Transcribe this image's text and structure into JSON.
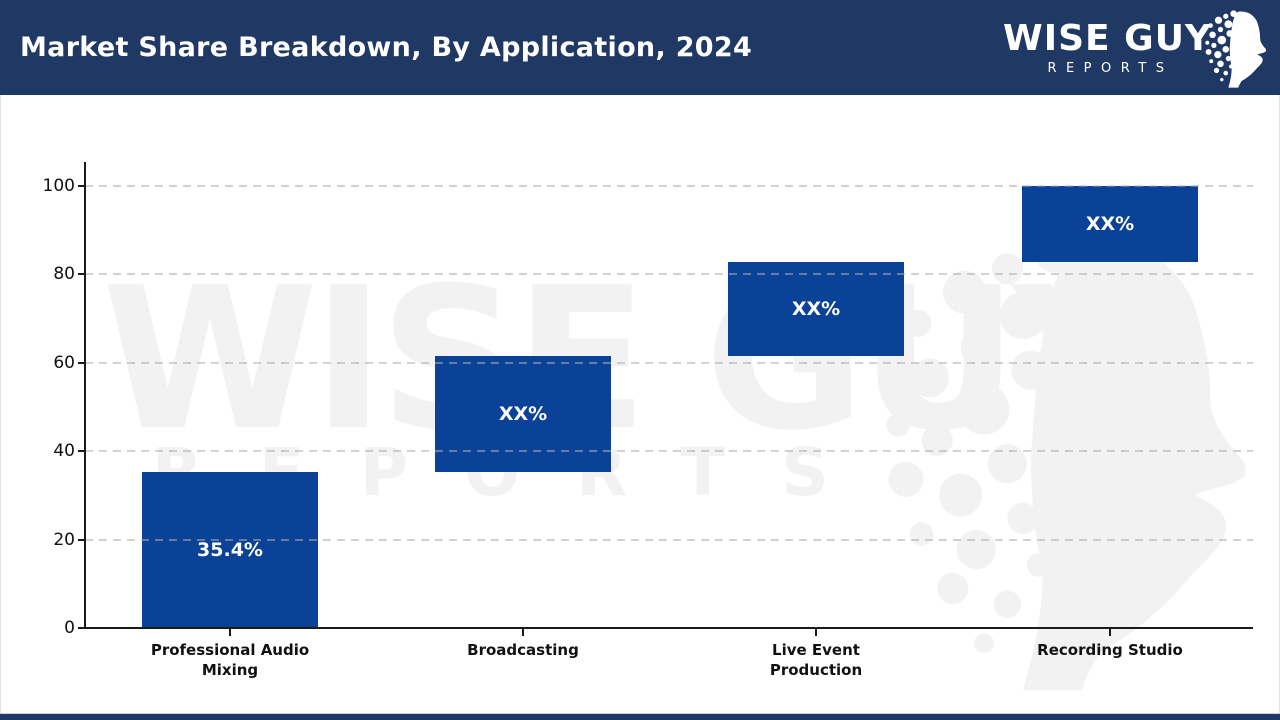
{
  "header": {
    "title": "Market Share Breakdown, By Application, 2024",
    "logo": {
      "name": "WISE GUY",
      "sub": "REPORTS"
    }
  },
  "watermark": {
    "name": "WISE GUY",
    "sub": "REPORTS"
  },
  "chart_data": {
    "type": "bar",
    "subtype": "waterfall",
    "title": "Market Share Breakdown, By Application, 2024",
    "categories": [
      "Professional Audio\nMixing",
      "Broadcasting",
      "Live Event\nProduction",
      "Recording Studio"
    ],
    "segments": [
      {
        "category": "Professional Audio Mixing",
        "start": 0,
        "end": 35.4,
        "value_label": "35.4%"
      },
      {
        "category": "Broadcasting",
        "start": 35.4,
        "end": 61.5,
        "value_label": "XX%"
      },
      {
        "category": "Live Event Production",
        "start": 61.5,
        "end": 82.7,
        "value_label": "XX%"
      },
      {
        "category": "Recording Studio",
        "start": 82.7,
        "end": 100,
        "value_label": "XX%"
      }
    ],
    "xlabel": "",
    "ylabel": "",
    "y_ticks": [
      0,
      20,
      40,
      60,
      80,
      100
    ],
    "ylim": [
      0,
      105
    ],
    "grid": "horizontal-dashed",
    "legend": "none",
    "bar_color": "#0a4297",
    "value_label_color": "#ffffff"
  },
  "colors": {
    "header_bg": "#1f3864",
    "footer_bg": "#1f3864",
    "bar": "#0a4297",
    "grid": "#d9d9d9",
    "axis": "#1a1a1a",
    "watermark": "#f2f2f2",
    "title_text": "#ffffff"
  }
}
